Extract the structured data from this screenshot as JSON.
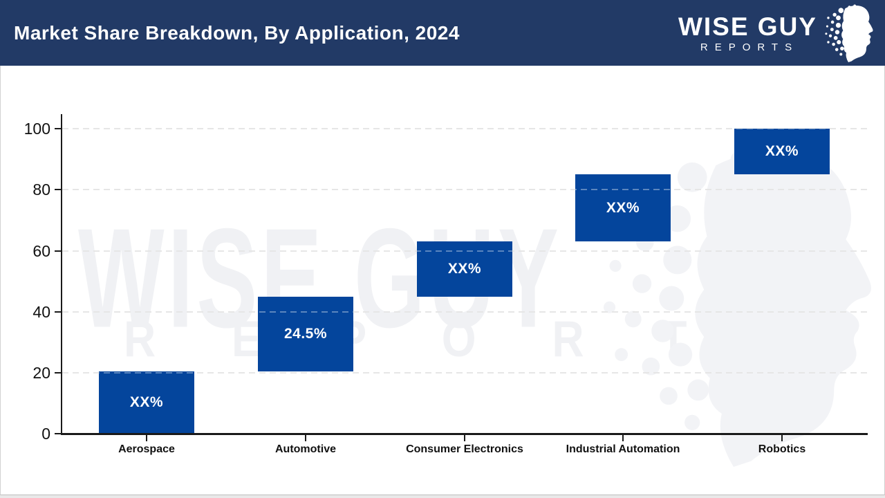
{
  "header": {
    "title": "Market Share Breakdown, By Application, 2024",
    "bg_color": "#223A66",
    "logo": {
      "line1": "WISE GUY",
      "line2": "REPORTS"
    }
  },
  "watermark": {
    "line1": "WISE GUY",
    "line2": "R E P O R T S"
  },
  "chart_data": {
    "type": "bar",
    "subtype": "waterfall-style floating segments",
    "title": "Market Share Breakdown, By Application, 2024",
    "categories": [
      "Aerospace",
      "Automotive",
      "Consumer Electronics",
      "Industrial Automation",
      "Robotics"
    ],
    "segments": [
      {
        "category": "Aerospace",
        "start": 0,
        "end": 20.5,
        "value": 20.5,
        "label": "XX%"
      },
      {
        "category": "Automotive",
        "start": 20.5,
        "end": 45,
        "value": 24.5,
        "label": "24.5%"
      },
      {
        "category": "Consumer Electronics",
        "start": 45,
        "end": 63,
        "value": 18,
        "label": "XX%"
      },
      {
        "category": "Industrial Automation",
        "start": 63,
        "end": 85,
        "value": 22,
        "label": "XX%"
      },
      {
        "category": "Robotics",
        "start": 85,
        "end": 100,
        "value": 15,
        "label": "XX%"
      }
    ],
    "xlabel": "",
    "ylabel": "",
    "yticks": [
      0,
      20,
      40,
      60,
      80,
      100
    ],
    "ylim": [
      0,
      105
    ],
    "grid": "horizontal dashed lines at y ticks, drawn over bars",
    "legend": "none",
    "bar_color": "#04459C",
    "bar_label_color": "#FFFFFF",
    "axis_color": "#1A1A1A",
    "gridline_color": "#D8D8D8"
  }
}
